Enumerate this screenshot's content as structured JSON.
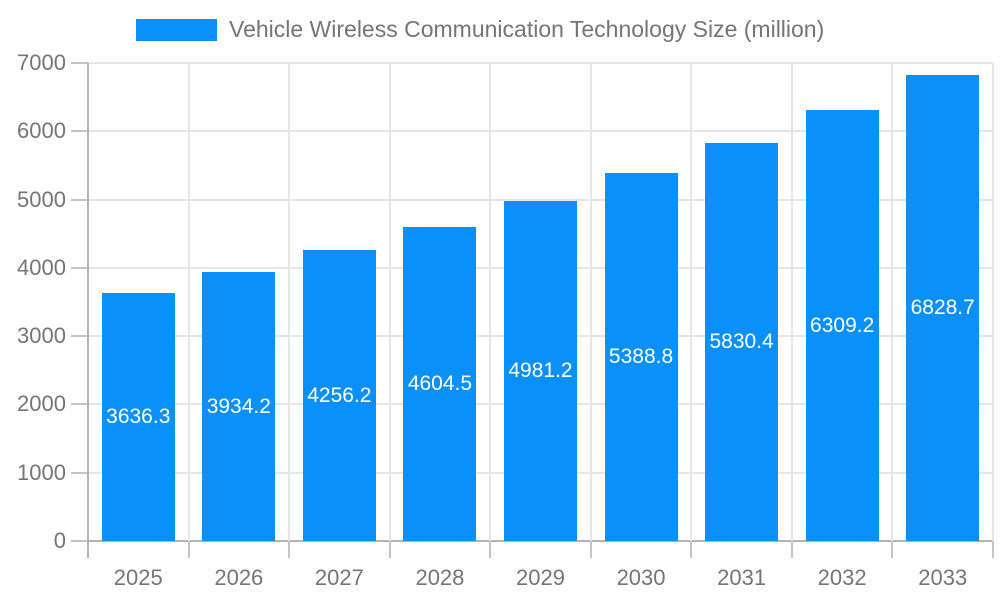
{
  "chart_data": {
    "type": "bar",
    "title": "Vehicle Wireless Communication Technology Size (million)",
    "categories": [
      "2025",
      "2026",
      "2027",
      "2028",
      "2029",
      "2030",
      "2031",
      "2032",
      "2033"
    ],
    "values": [
      3636.3,
      3934.2,
      4256.2,
      4604.5,
      4981.2,
      5388.8,
      5830.4,
      6309.2,
      6828.7
    ],
    "series_name": "Vehicle Wireless Communication Technology Size (million)",
    "xlabel": "",
    "ylabel": "",
    "ylim": [
      0,
      7000
    ],
    "yticks": [
      0,
      1000,
      2000,
      3000,
      4000,
      5000,
      6000,
      7000
    ],
    "grid": true,
    "legend_position": "top",
    "colors": {
      "bar": "#0a90fb",
      "bar_value_label": "#ffffff",
      "axis_text": "#757575",
      "gridline": "#e6e6e6",
      "axis_line": "#b3b3b3",
      "tick": "#c4c4c4",
      "background": "#ffffff"
    }
  }
}
